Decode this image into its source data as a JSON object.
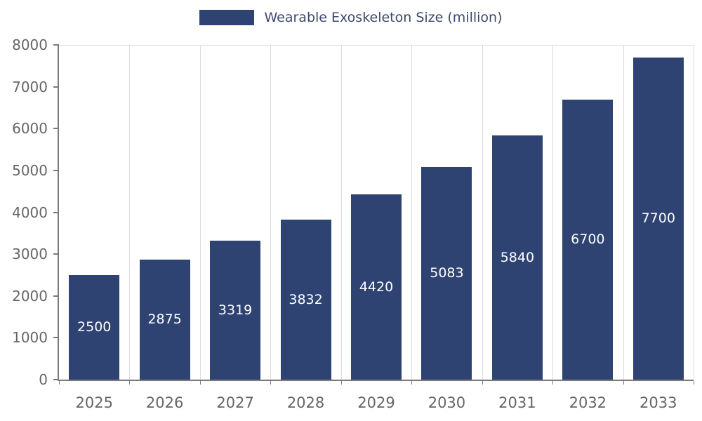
{
  "chart_data": {
    "type": "bar",
    "title": "Wearable Exoskeleton Size (million)",
    "legend_label": "Wearable Exoskeleton Size (million)",
    "legend_position": "top",
    "categories": [
      "2025",
      "2026",
      "2027",
      "2028",
      "2029",
      "2030",
      "2031",
      "2032",
      "2033"
    ],
    "values": [
      2500,
      2875,
      3319,
      3832,
      4420,
      5083,
      5840,
      6700,
      7700
    ],
    "xlabel": "",
    "ylabel": "",
    "ylim": [
      0,
      8000
    ],
    "yticks": [
      0,
      1000,
      2000,
      3000,
      4000,
      5000,
      6000,
      7000,
      8000
    ],
    "grid": "vertical",
    "data_labels": "inside-center",
    "colors": {
      "bar": "#2E4372",
      "grid": "#dcdcdc",
      "axis": "#7a7a7a",
      "tick_text": "#666666",
      "value_text": "#ffffff",
      "legend_text": "#3b4a6b"
    }
  }
}
